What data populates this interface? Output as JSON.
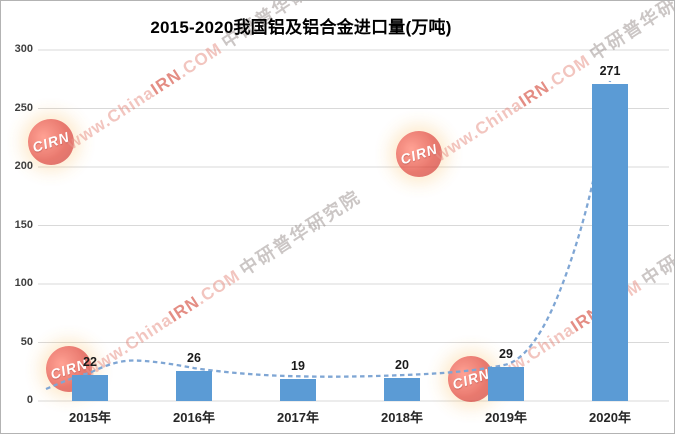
{
  "title": "2015-2020我国铝及铝合金进口量(万吨)",
  "chart_data": {
    "type": "bar",
    "title": "2015-2020我国铝及铝合金进口量(万吨)",
    "categories": [
      "2015年",
      "2016年",
      "2017年",
      "2018年",
      "2019年",
      "2020年"
    ],
    "values": [
      22,
      26,
      19,
      20,
      29,
      271
    ],
    "series": [
      {
        "name": "进口量",
        "type": "bar",
        "values": [
          22,
          26,
          19,
          20,
          29,
          271
        ]
      },
      {
        "name": "趋势",
        "type": "dashed-smooth-line",
        "values": [
          22,
          26,
          19,
          20,
          29,
          271
        ]
      }
    ],
    "value_labels_shown": true,
    "xlabel": "",
    "ylabel": "",
    "ylim": [
      0,
      300
    ],
    "yticks": [
      300,
      250,
      200,
      150,
      100,
      50,
      0
    ],
    "grid": true,
    "legend": "none",
    "colors": {
      "bar": "#5B9BD5",
      "trend_line": "#7FA6D4",
      "gridline": "#D9D9D9",
      "axis_text": "#3F3F3F",
      "value_label": "#1A1A1A",
      "title_text": "#000000",
      "background": "#FFFFFF"
    }
  },
  "watermark": {
    "logo_text": "CIRN",
    "site_prefix": "www.China",
    "site_brand": "IRN",
    "site_suffix": ".COM",
    "org_name": "中研普华研究院"
  }
}
